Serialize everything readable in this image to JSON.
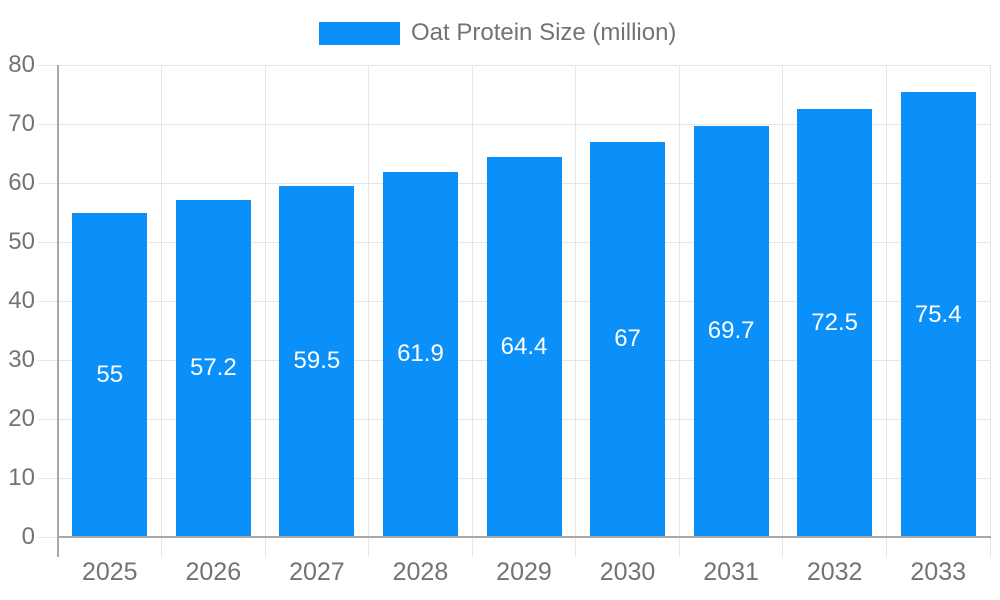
{
  "chart_data": {
    "type": "bar",
    "title": "Oat Protein Size (million)",
    "legend": {
      "label": "Oat Protein Size (million)",
      "position": "top-center"
    },
    "categories": [
      "2025",
      "2026",
      "2027",
      "2028",
      "2029",
      "2030",
      "2031",
      "2032",
      "2033"
    ],
    "values": [
      55,
      57.2,
      59.5,
      61.9,
      64.4,
      67,
      69.7,
      72.5,
      75.4
    ],
    "value_labels": [
      "55",
      "57.2",
      "59.5",
      "61.9",
      "64.4",
      "67",
      "69.7",
      "72.5",
      "75.4"
    ],
    "xlabel": "",
    "ylabel": "",
    "ylim": [
      0,
      80
    ],
    "ytick_step": 10,
    "ytick_labels": [
      "0",
      "10",
      "20",
      "30",
      "40",
      "50",
      "60",
      "70",
      "80"
    ],
    "grid": true,
    "colors": {
      "bar": "#0b90fa",
      "grid_line": "#e6e6e6",
      "axis_line": "#a8a8a8",
      "tick_label": "#737373",
      "legend_text": "#737373",
      "value_label": "#ffffff",
      "background": "#ffffff"
    }
  }
}
